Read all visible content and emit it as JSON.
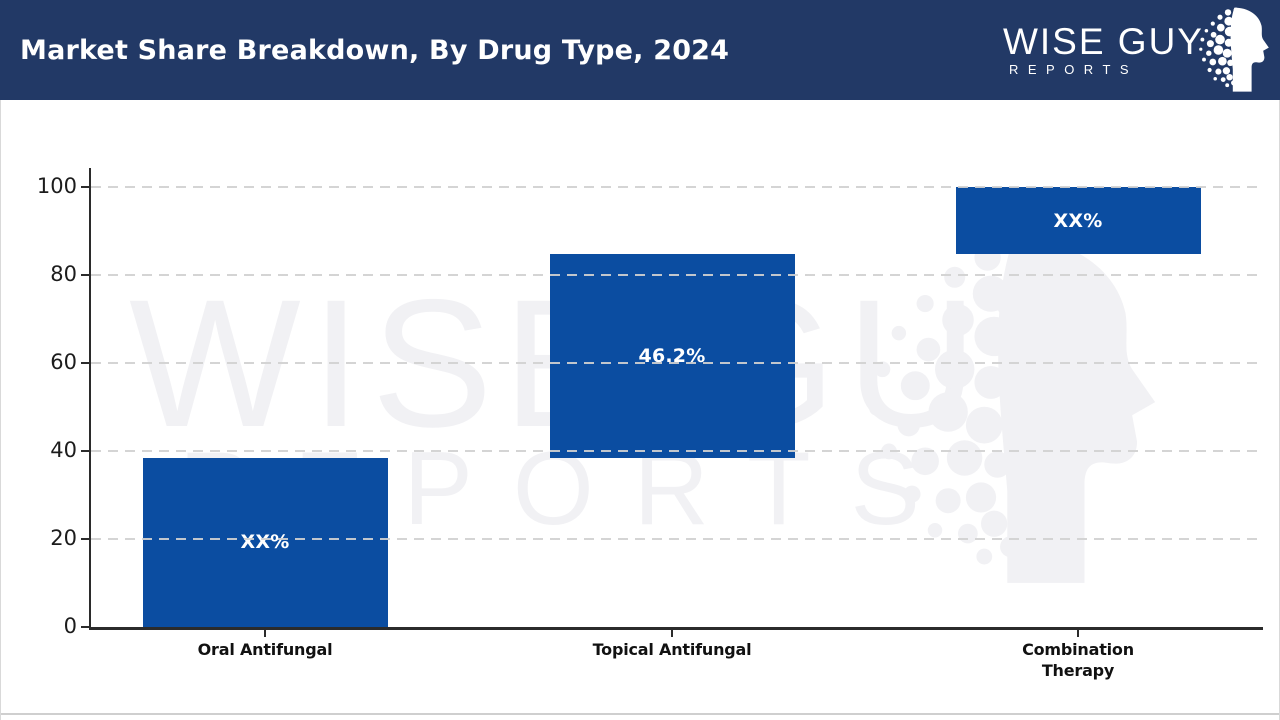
{
  "header": {
    "title": "Market Share Breakdown, By Drug Type, 2024",
    "brand": {
      "wordmark": "WISE GUY",
      "tagline": "REPORTS"
    }
  },
  "watermark": {
    "line1": "WISE GUY",
    "line2": "REPORTS"
  },
  "chart_data": {
    "type": "bar",
    "subtype": "waterfall-stacked-percentage",
    "title": "Market Share Breakdown, By Drug Type, 2024",
    "categories": [
      "Oral Antifungal",
      "Topical Antifungal",
      "Combination Therapy"
    ],
    "categories_display": [
      "Oral Antifungal",
      "Topical Antifungal",
      "Combination\nTherapy"
    ],
    "series": [
      {
        "name": "Oral Antifungal",
        "start": 0,
        "end": 38.5,
        "share_pct": 38.5,
        "label": "XX%"
      },
      {
        "name": "Topical Antifungal",
        "start": 38.5,
        "end": 84.7,
        "share_pct": 46.2,
        "label": "46.2%"
      },
      {
        "name": "Combination Therapy",
        "start": 84.7,
        "end": 100,
        "share_pct": 15.3,
        "label": "XX%"
      }
    ],
    "xlabel": "",
    "ylabel": "",
    "ylim": [
      0,
      100
    ],
    "yticks": [
      0,
      20,
      40,
      60,
      80,
      100
    ],
    "grid": {
      "axis": "y",
      "style": "dashed",
      "color": "#d6d6d6",
      "over_bars": true
    },
    "colors": {
      "bar": "#0B4DA1",
      "bar_label": "#ffffff",
      "axis": "#2b2b2b",
      "header_bg": "#223966",
      "watermark": "#f1f1f4"
    },
    "legend_position": "none"
  }
}
